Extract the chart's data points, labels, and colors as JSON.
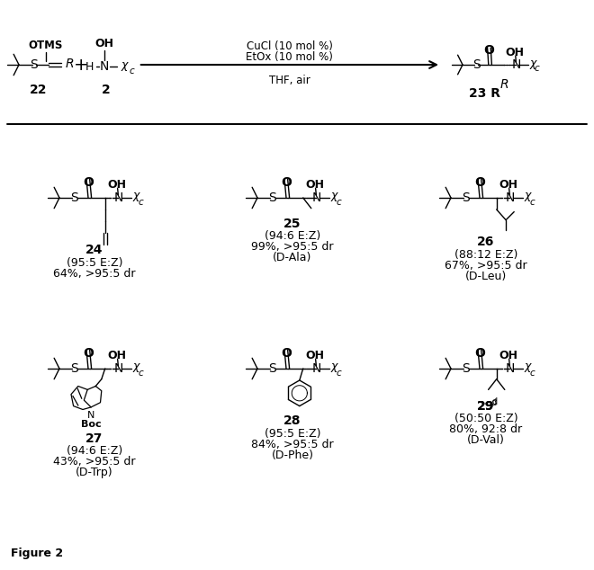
{
  "bg_color": "#ffffff",
  "conditions": [
    "CuCl (10 mol %)",
    "EtOx (10 mol %)",
    "THF, air"
  ],
  "products": [
    {
      "id": "24",
      "sup": "",
      "col": 0,
      "row": 0,
      "ez": "(95:5 E:Z)",
      "pct_dr": "64%, >95:5 dr",
      "aa": ""
    },
    {
      "id": "25",
      "sup": "",
      "col": 1,
      "row": 0,
      "ez": "(94:6 E:Z)",
      "pct_dr": "99%, >95:5 dr",
      "aa": "(D-Ala)"
    },
    {
      "id": "26",
      "sup": "",
      "col": 2,
      "row": 0,
      "ez": "(88:12 E:Z)",
      "pct_dr": "67%, >95:5 dr",
      "aa": "(D-Leu)"
    },
    {
      "id": "27",
      "sup": "",
      "col": 0,
      "row": 1,
      "ez": "(94:6 E:Z)",
      "pct_dr": "43%, >95:5 dr",
      "aa": "(D-Trp)"
    },
    {
      "id": "28",
      "sup": "",
      "col": 1,
      "row": 1,
      "ez": "(95:5 E:Z)",
      "pct_dr": "84%, >95:5 dr",
      "aa": "(D-Phe)"
    },
    {
      "id": "29",
      "sup": "d",
      "col": 2,
      "row": 1,
      "ez": "(50:50 E:Z)",
      "pct_dr": "80%, 92:8 dr",
      "aa": "(D-Val)"
    }
  ]
}
